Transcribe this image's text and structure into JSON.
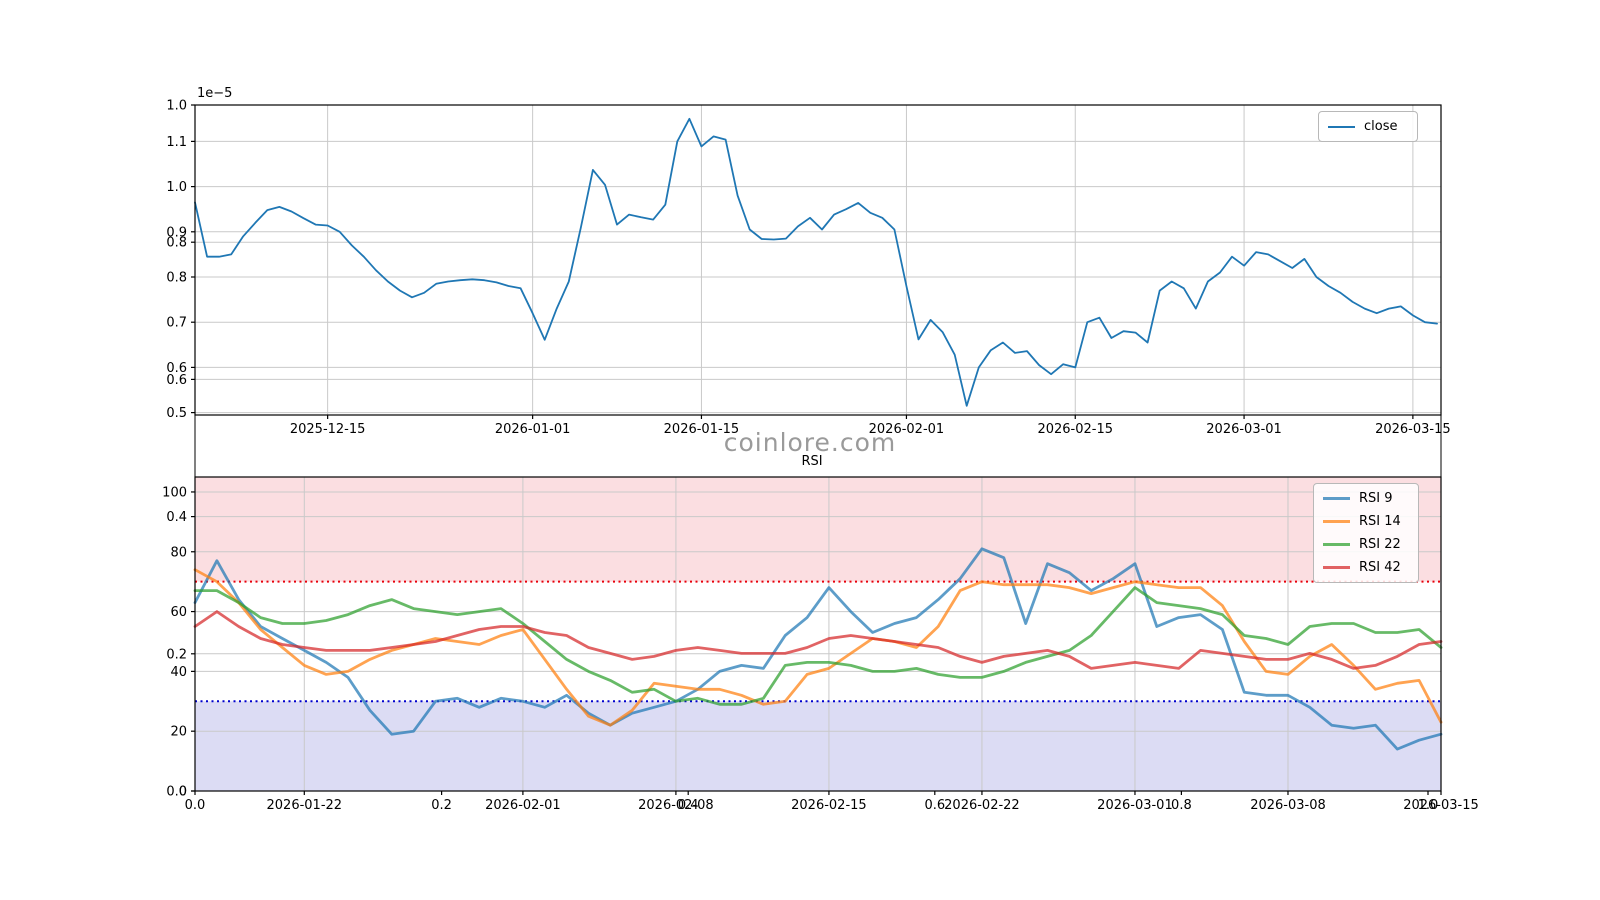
{
  "watermark": "coinlore.com",
  "colors": {
    "close_line": "#1f77b4",
    "rsi9": "#1f77b4",
    "rsi14": "#ff7f0e",
    "rsi22": "#2ca02c",
    "rsi42": "#d62728",
    "rsi_opacity": 0.72,
    "overbought_fill": "#fbdee1",
    "oversold_fill": "#dcdcf4",
    "overbought_line": "#e8000b",
    "oversold_line": "#0000cd",
    "grid": "#c9c9c9",
    "spine": "#000000",
    "text": "#000000",
    "watermark_color": "#9a9a9a"
  },
  "overlay_axis": {
    "x_tick_labels": [
      "0.0",
      "0.2",
      "0.4",
      "0.6",
      "0.8",
      "1.0"
    ],
    "y_tick_labels": [
      "1.0",
      "0.8",
      "0.6",
      "0.4",
      "0.2",
      "0.0"
    ]
  },
  "chart_data": [
    {
      "type": "line",
      "title": "",
      "offset_label": "1e−5",
      "xlabel": "",
      "ylabel": "",
      "ylim": [
        0.4947,
        1.1805
      ],
      "y_ticks": [
        0.5,
        0.6,
        0.7,
        0.8,
        0.9,
        1.0,
        1.1
      ],
      "x_tick_labels": [
        "2025-12-15",
        "2026-01-01",
        "2026-01-15",
        "2026-02-01",
        "2026-02-15",
        "2026-03-01",
        "2026-03-15"
      ],
      "x_tick_index": [
        11,
        28,
        42,
        59,
        73,
        87,
        101
      ],
      "grid": true,
      "legend_position": "upper right",
      "series": [
        {
          "name": "close",
          "color_key": "close_line",
          "unit_multiplier": "1e-5",
          "values": [
            0.965,
            0.845,
            0.845,
            0.85,
            0.89,
            0.92,
            0.948,
            0.955,
            0.945,
            0.93,
            0.916,
            0.914,
            0.9,
            0.87,
            0.845,
            0.815,
            0.79,
            0.77,
            0.755,
            0.765,
            0.785,
            0.79,
            0.793,
            0.795,
            0.793,
            0.788,
            0.78,
            0.775,
            0.72,
            0.661,
            0.73,
            0.79,
            0.91,
            1.037,
            1.004,
            0.916,
            0.938,
            0.932,
            0.927,
            0.96,
            1.1,
            1.15,
            1.089,
            1.111,
            1.104,
            0.98,
            0.905,
            0.884,
            0.883,
            0.885,
            0.912,
            0.931,
            0.905,
            0.938,
            0.95,
            0.964,
            0.942,
            0.931,
            0.905,
            0.78,
            0.662,
            0.705,
            0.678,
            0.628,
            0.515,
            0.6,
            0.638,
            0.655,
            0.632,
            0.636,
            0.605,
            0.585,
            0.607,
            0.6,
            0.7,
            0.71,
            0.665,
            0.68,
            0.677,
            0.655,
            0.77,
            0.79,
            0.775,
            0.73,
            0.79,
            0.81,
            0.845,
            0.825,
            0.855,
            0.85,
            0.835,
            0.82,
            0.84,
            0.8,
            0.78,
            0.765,
            0.745,
            0.73,
            0.72,
            0.73,
            0.735,
            0.715,
            0.7,
            0.697
          ]
        }
      ]
    },
    {
      "type": "line",
      "title": "RSI",
      "ylim": [
        0,
        105
      ],
      "y_ticks": [
        0,
        20,
        40,
        60,
        80,
        100
      ],
      "x_tick_labels": [
        "2026-01-22",
        "2026-02-01",
        "2026-02-08",
        "2026-02-15",
        "2026-02-22",
        "2026-03-01",
        "2026-03-08",
        "2026-03-15"
      ],
      "x_tick_index": [
        5,
        15,
        22,
        29,
        36,
        43,
        50,
        57
      ],
      "grid": true,
      "legend_position": "upper right",
      "bands": [
        {
          "name": "overbought-zone",
          "from": 70,
          "to": 105,
          "fill_key": "overbought_fill"
        },
        {
          "name": "oversold-zone",
          "from": 0,
          "to": 30,
          "fill_key": "oversold_fill"
        }
      ],
      "hlines": [
        {
          "name": "overbought-threshold",
          "y": 70,
          "style": "dotted",
          "color_key": "overbought_line"
        },
        {
          "name": "oversold-threshold",
          "y": 30,
          "style": "dotted",
          "color_key": "oversold_line"
        }
      ],
      "series": [
        {
          "name": "RSI 9",
          "color_key": "rsi9",
          "values": [
            63,
            77,
            64,
            55,
            51,
            47,
            43,
            38,
            27,
            19,
            20,
            30,
            31,
            28,
            31,
            30,
            28,
            32,
            26,
            22,
            26,
            28,
            30,
            34,
            40,
            42,
            41,
            52,
            58,
            68,
            60,
            53,
            56,
            58,
            64,
            71,
            81,
            78,
            56,
            76,
            73,
            67,
            71,
            76,
            55,
            58,
            59,
            54,
            33,
            32,
            32,
            28,
            22,
            21,
            22,
            14,
            17,
            19
          ]
        },
        {
          "name": "RSI 14",
          "color_key": "rsi14",
          "values": [
            74,
            70,
            63,
            54,
            48,
            42,
            39,
            40,
            44,
            47,
            49,
            51,
            50,
            49,
            52,
            54,
            44,
            34,
            25,
            22,
            27,
            36,
            35,
            34,
            34,
            32,
            29,
            30,
            39,
            41,
            46,
            51,
            50,
            48,
            55,
            67,
            70,
            69,
            69,
            69,
            68,
            66,
            68,
            70,
            69,
            68,
            68,
            62,
            50,
            40,
            39,
            45,
            49,
            42,
            34,
            36,
            37,
            23
          ]
        },
        {
          "name": "RSI 22",
          "color_key": "rsi22",
          "values": [
            67,
            67,
            63,
            58,
            56,
            56,
            57,
            59,
            62,
            64,
            61,
            60,
            59,
            60,
            61,
            56,
            50,
            44,
            40,
            37,
            33,
            34,
            30,
            31,
            29,
            29,
            31,
            42,
            43,
            43,
            42,
            40,
            40,
            41,
            39,
            38,
            38,
            40,
            43,
            45,
            47,
            52,
            60,
            68,
            63,
            62,
            61,
            59,
            52,
            51,
            49,
            55,
            56,
            56,
            53,
            53,
            54,
            48
          ]
        },
        {
          "name": "RSI 42",
          "color_key": "rsi42",
          "values": [
            55,
            60,
            55,
            51,
            49,
            48,
            47,
            47,
            47,
            48,
            49,
            50,
            52,
            54,
            55,
            55,
            53,
            52,
            48,
            46,
            44,
            45,
            47,
            48,
            47,
            46,
            46,
            46,
            48,
            51,
            52,
            51,
            50,
            49,
            48,
            45,
            43,
            45,
            46,
            47,
            45,
            41,
            42,
            43,
            42,
            41,
            47,
            46,
            45,
            44,
            44,
            46,
            44,
            41,
            42,
            45,
            49,
            50
          ]
        }
      ]
    }
  ]
}
